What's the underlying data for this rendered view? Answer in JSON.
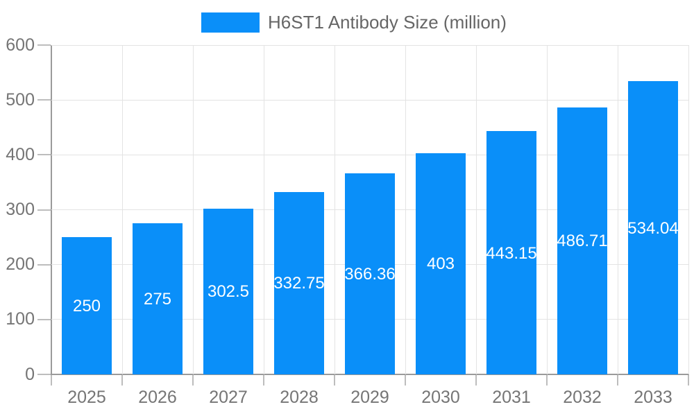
{
  "chart_data": {
    "type": "bar",
    "title": "H6ST1 Antibody Size (million)",
    "legend_position": "top",
    "categories": [
      "2025",
      "2026",
      "2027",
      "2028",
      "2029",
      "2030",
      "2031",
      "2032",
      "2033"
    ],
    "series": [
      {
        "name": "H6ST1 Antibody Size (million)",
        "values": [
          250,
          275,
          302.5,
          332.75,
          366.36,
          403,
          443.15,
          486.71,
          534.04
        ],
        "data_labels": [
          "250",
          "275",
          "302.5",
          "332.75",
          "366.36",
          "403",
          "443.15",
          "486.71",
          "534.04"
        ],
        "color": "#0a8ff9"
      }
    ],
    "xlabel": "",
    "ylabel": "",
    "ylim": [
      0,
      600
    ],
    "y_ticks": [
      0,
      100,
      200,
      300,
      400,
      500,
      600
    ],
    "grid": true,
    "colors": {
      "bar": "#0a8ff9",
      "axis_line": "#9a9a9a",
      "tick": "#bdbdbd",
      "gridline": "#e3e3e3",
      "axis_label": "#757575",
      "legend_text": "#666666",
      "bar_label_text": "#ffffff",
      "background": "#ffffff"
    }
  }
}
